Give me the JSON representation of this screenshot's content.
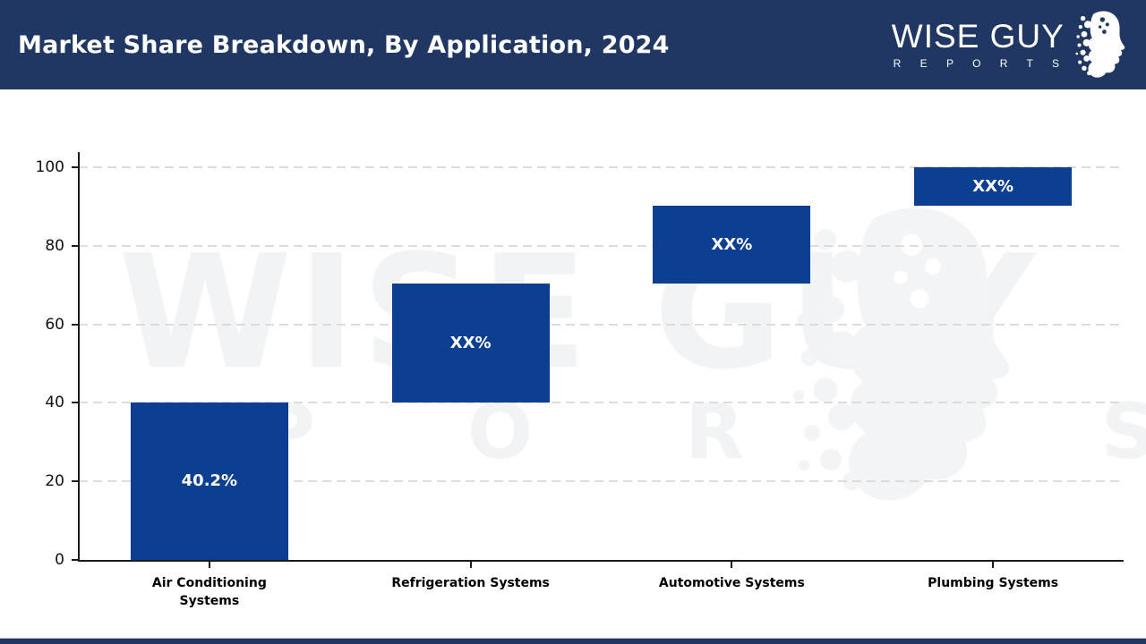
{
  "header": {
    "title": "Market Share Breakdown, By Application, 2024",
    "logo": {
      "brand": "WISE GUY",
      "sub": "R E P O R T S"
    }
  },
  "watermark": {
    "line1": "WISE GUY",
    "line2": "P O R T S"
  },
  "chart_data": {
    "type": "bar",
    "subtype": "waterfall",
    "title": "Market Share Breakdown, By Application, 2024",
    "categories": [
      "Air Conditioning Systems",
      "Refrigeration Systems",
      "Automotive Systems",
      "Plumbing Systems"
    ],
    "bars": [
      {
        "category": "Air Conditioning Systems",
        "start": 0,
        "end": 40.2,
        "label": "40.2%"
      },
      {
        "category": "Refrigeration Systems",
        "start": 40.2,
        "end": 70.4,
        "label": "XX%"
      },
      {
        "category": "Automotive Systems",
        "start": 70.4,
        "end": 90.2,
        "label": "XX%"
      },
      {
        "category": "Plumbing Systems",
        "start": 90.2,
        "end": 100,
        "label": "XX%"
      }
    ],
    "ylim": [
      0,
      100
    ],
    "yticks": [
      0,
      20,
      40,
      60,
      80,
      100
    ],
    "grid": "horizontal-dashed",
    "legend": "none"
  },
  "colors": {
    "header_bg": "#213763",
    "footer_bg": "#213763",
    "bar": "#0c3e92",
    "bar_label": "#ffffff",
    "axis": "#1a1a1a",
    "grid": "#dcdcdc",
    "watermark_text": "#f2f3f5",
    "watermark_face": "#f3f4f6",
    "background": "#ffffff"
  }
}
